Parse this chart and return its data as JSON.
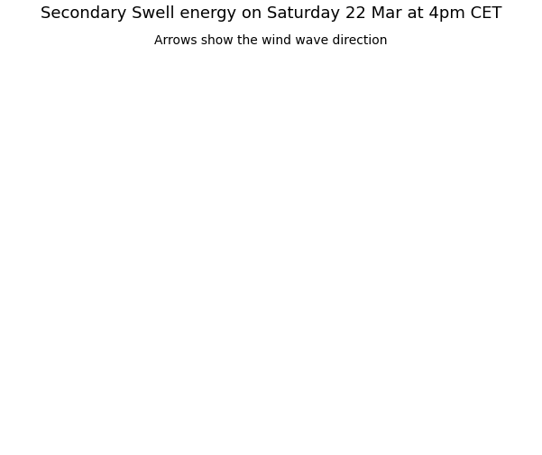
{
  "title": "Secondary Swell energy on Saturday 22 Mar at 4pm CET",
  "subtitle": "Arrows show the wind wave direction",
  "title_fontsize": 13,
  "subtitle_fontsize": 10,
  "background_color": "#ffffff",
  "map_bg_color": "#000000",
  "land_color": "#aaaaaa",
  "border_color": "#000000",
  "fig_width": 6.01,
  "fig_height": 5.04,
  "dpi": 100
}
